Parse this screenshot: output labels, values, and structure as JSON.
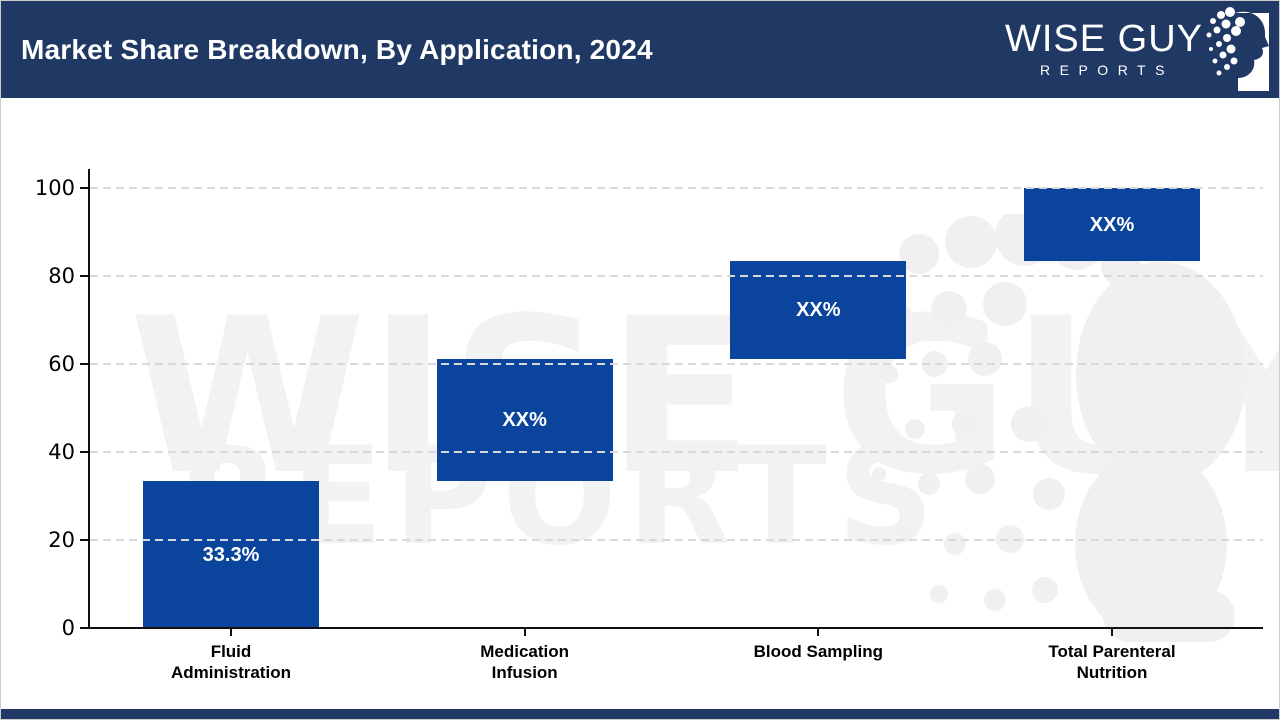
{
  "header": {
    "title": "Market Share Breakdown, By Application, 2024",
    "logo": {
      "wordmark": "WISE GUY",
      "subtext": "REPORTS"
    },
    "bg_color": "#1f3864"
  },
  "watermark": {
    "wordmark": "WISE GUY",
    "subtext": "REPORTS"
  },
  "chart_data": {
    "type": "bar",
    "subtype": "waterfall",
    "title": "Market Share Breakdown, By Application, 2024",
    "categories": [
      "Fluid Administration",
      "Medication Infusion",
      "Blood Sampling",
      "Total Parenteral Nutrition"
    ],
    "segments": [
      {
        "category": "Fluid Administration",
        "start": 0,
        "end": 33.3,
        "label": "33.3%"
      },
      {
        "category": "Medication Infusion",
        "start": 33.3,
        "end": 61.1,
        "label": "XX%"
      },
      {
        "category": "Blood Sampling",
        "start": 61.1,
        "end": 83.4,
        "label": "XX%"
      },
      {
        "category": "Total Parenteral Nutrition",
        "start": 83.4,
        "end": 100,
        "label": "XX%"
      }
    ],
    "values_delta": [
      33.3,
      27.8,
      22.3,
      16.6
    ],
    "ylim": [
      0,
      100
    ],
    "yticks": [
      0,
      20,
      40,
      60,
      80,
      100
    ],
    "grid": {
      "axis": "y",
      "style": "dashed",
      "color": "#d9d9d9"
    },
    "bar_color": "#0a449c",
    "bar_label_color": "#ffffff",
    "legend": null,
    "xlabel": "",
    "ylabel": ""
  }
}
